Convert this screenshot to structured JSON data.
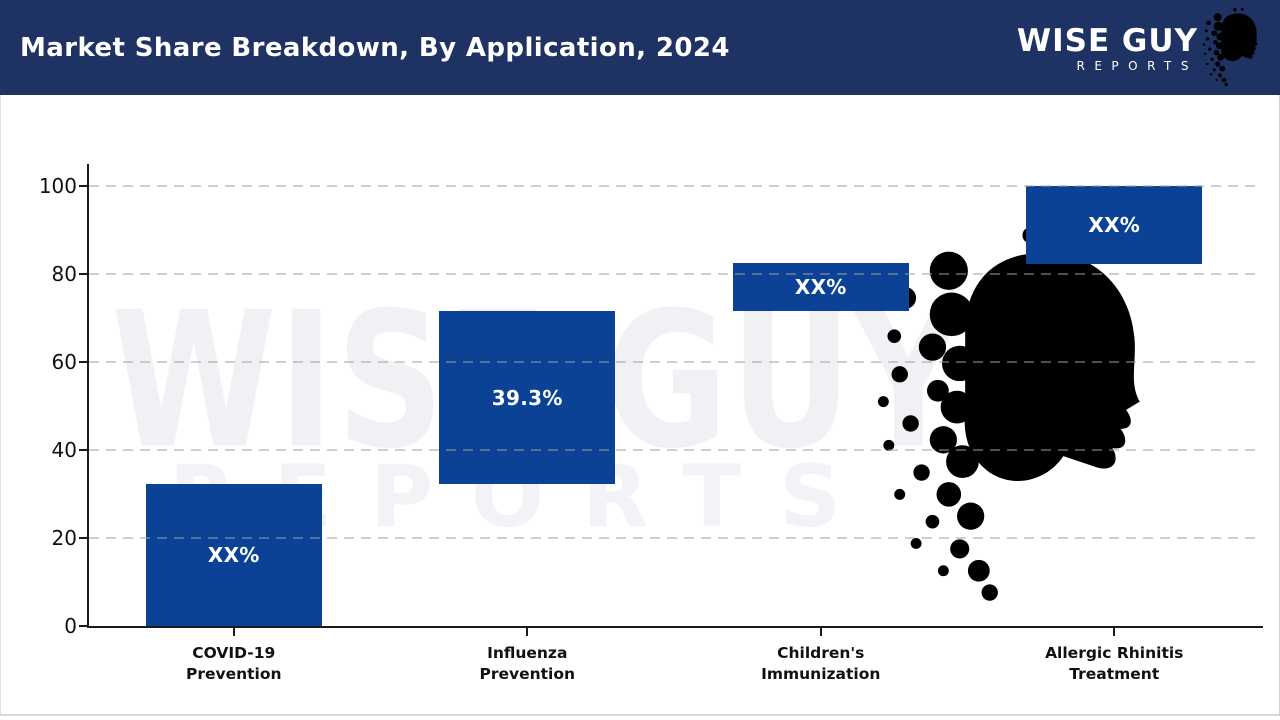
{
  "header": {
    "title": "Market Share Breakdown, By Application, 2024",
    "logo": {
      "line1": "WISE GUY",
      "line2": "REPORTS"
    }
  },
  "watermark": {
    "line1": "WISE GUY",
    "line2": "REPORTS"
  },
  "chart_data": {
    "type": "bar",
    "subtype": "floating-waterfall",
    "title": "Market Share Breakdown, By Application, 2024",
    "categories": [
      "COVID-19 Prevention",
      "Influenza Prevention",
      "Children's Immunization",
      "Allergic Rhinitis Treatment"
    ],
    "category_lines": [
      [
        "COVID-19",
        "Prevention"
      ],
      [
        "Influenza",
        "Prevention"
      ],
      [
        "Children's",
        "Immunization"
      ],
      [
        "Allergic Rhinitis",
        "Treatment"
      ]
    ],
    "segments": [
      {
        "from": 0,
        "to": 32.2
      },
      {
        "from": 32.2,
        "to": 71.5
      },
      {
        "from": 71.7,
        "to": 82.4
      },
      {
        "from": 82.3,
        "to": 100
      }
    ],
    "values": [
      32.2,
      39.3,
      10.7,
      17.7
    ],
    "bar_labels": [
      "XX%",
      "39.3%",
      "XX%",
      "XX%"
    ],
    "xlabel": "",
    "ylabel": "",
    "yticks": [
      0,
      20,
      40,
      60,
      80,
      100
    ],
    "ylim": [
      0,
      105
    ],
    "grid": "horizontal-dashed",
    "legend": "none",
    "bar_color": "#0c4296",
    "bar_label_color": "#ffffff"
  },
  "colors": {
    "header_bg": "#1e3263",
    "bar": "#0c4296",
    "axis": "#1a1a1a",
    "grid": "#d0d0d0",
    "watermark": "#f0f1f4",
    "card_border": "#d9d9d9"
  }
}
